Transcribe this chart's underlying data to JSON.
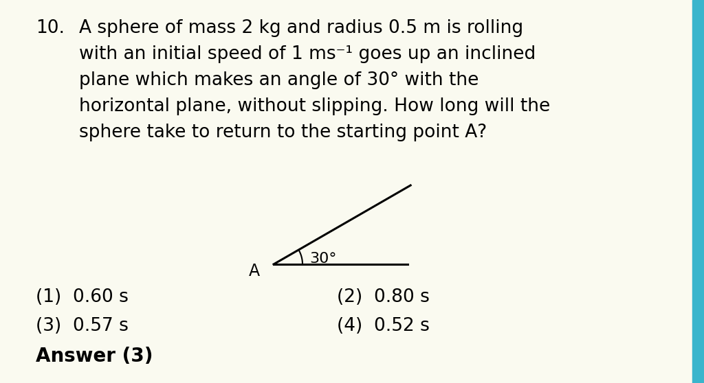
{
  "background_color": "#fafaf0",
  "right_bar_color": "#3ab5cc",
  "question_number": "10.",
  "question_text_line1": "A sphere of mass 2 kg and radius 0.5 m is rolling",
  "question_text_line2": "with an initial speed of 1 ms⁻¹ goes up an inclined",
  "question_text_line3": "plane which makes an angle of 30° with the",
  "question_text_line4": "horizontal plane, without slipping. How long will the",
  "question_text_line5": "sphere take to return to the starting point A?",
  "option1": "(1)  0.60 s",
  "option2": "(2)  0.80 s",
  "option3": "(3)  0.57 s",
  "option4": "(4)  0.52 s",
  "answer_text": "Answer (3)",
  "angle_label": "30°",
  "point_label": "A",
  "font_size_question": 19,
  "font_size_options": 19,
  "font_size_answer": 20,
  "font_size_angle": 16,
  "font_size_point": 17
}
